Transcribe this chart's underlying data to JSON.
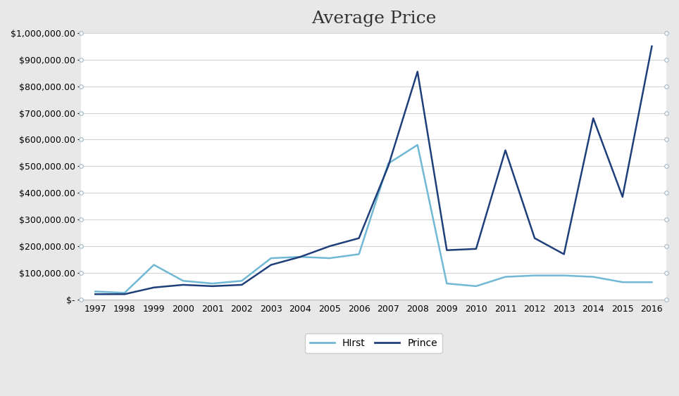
{
  "title": "Average Price",
  "years": [
    1997,
    1998,
    1999,
    2000,
    2001,
    2002,
    2003,
    2004,
    2005,
    2006,
    2007,
    2008,
    2009,
    2010,
    2011,
    2012,
    2013,
    2014,
    2015,
    2016
  ],
  "hirst": [
    30000,
    25000,
    130000,
    70000,
    60000,
    70000,
    155000,
    160000,
    155000,
    170000,
    510000,
    580000,
    60000,
    50000,
    85000,
    90000,
    90000,
    85000,
    65000,
    65000
  ],
  "prince": [
    20000,
    20000,
    45000,
    55000,
    50000,
    55000,
    130000,
    160000,
    200000,
    230000,
    500000,
    855000,
    185000,
    190000,
    560000,
    230000,
    170000,
    680000,
    385000,
    950000
  ],
  "hirst_color": "#70B8D4",
  "prince_color": "#1F3F7A",
  "hirst_label": "HIrst",
  "prince_label": "Prince",
  "ylim": [
    0,
    1000000
  ],
  "ytick_step": 100000,
  "background_color": "#FFFFFF",
  "outer_bg": "#F0F0F0",
  "grid_color": "#D3D3D3",
  "title_fontsize": 18,
  "tick_fontsize": 9,
  "legend_fontsize": 10,
  "linewidth": 1.8,
  "circle_color": "#A0B8C8",
  "circle_size": 4
}
